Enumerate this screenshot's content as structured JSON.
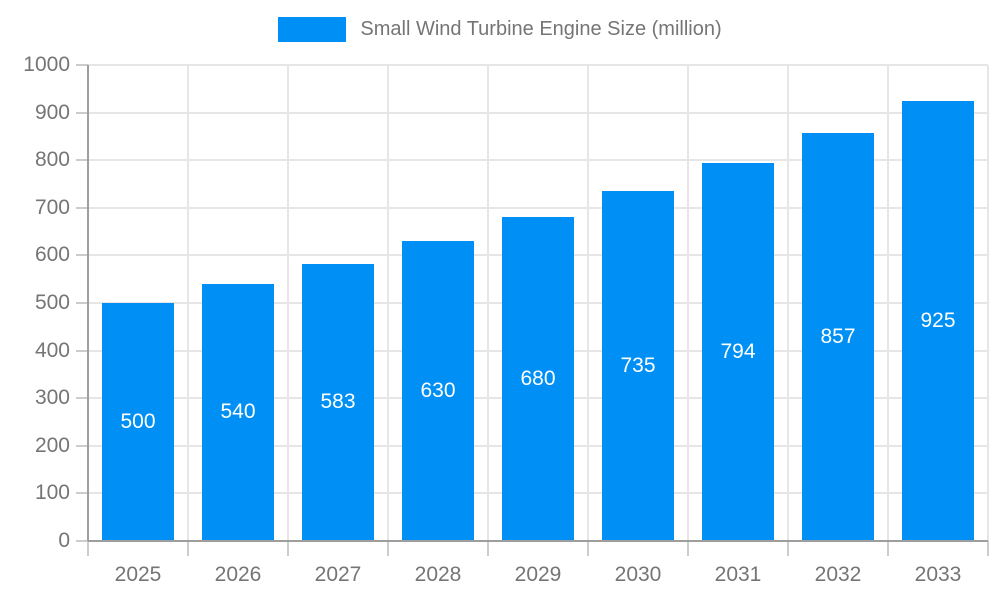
{
  "chart_data": {
    "type": "bar",
    "title": "Small Wind Turbine Engine Size (million)",
    "legend": {
      "position": "top",
      "label": "Small Wind Turbine Engine Size (million)"
    },
    "categories": [
      "2025",
      "2026",
      "2027",
      "2028",
      "2029",
      "2030",
      "2031",
      "2032",
      "2033"
    ],
    "values": [
      500,
      540,
      583,
      630,
      680,
      735,
      794,
      857,
      925
    ],
    "xlabel": "",
    "ylabel": "",
    "ylim": [
      0,
      1000
    ],
    "yticks": [
      0,
      100,
      200,
      300,
      400,
      500,
      600,
      700,
      800,
      900,
      1000
    ],
    "grid": true,
    "bar_labels_inside": true,
    "colors": {
      "bar": "#0090F5",
      "bar_label": "#ffffff",
      "grid": "#e6e6e6",
      "axis": "#9e9e9e",
      "tick": "#cccccc",
      "text": "#757575",
      "background": "#ffffff"
    }
  }
}
